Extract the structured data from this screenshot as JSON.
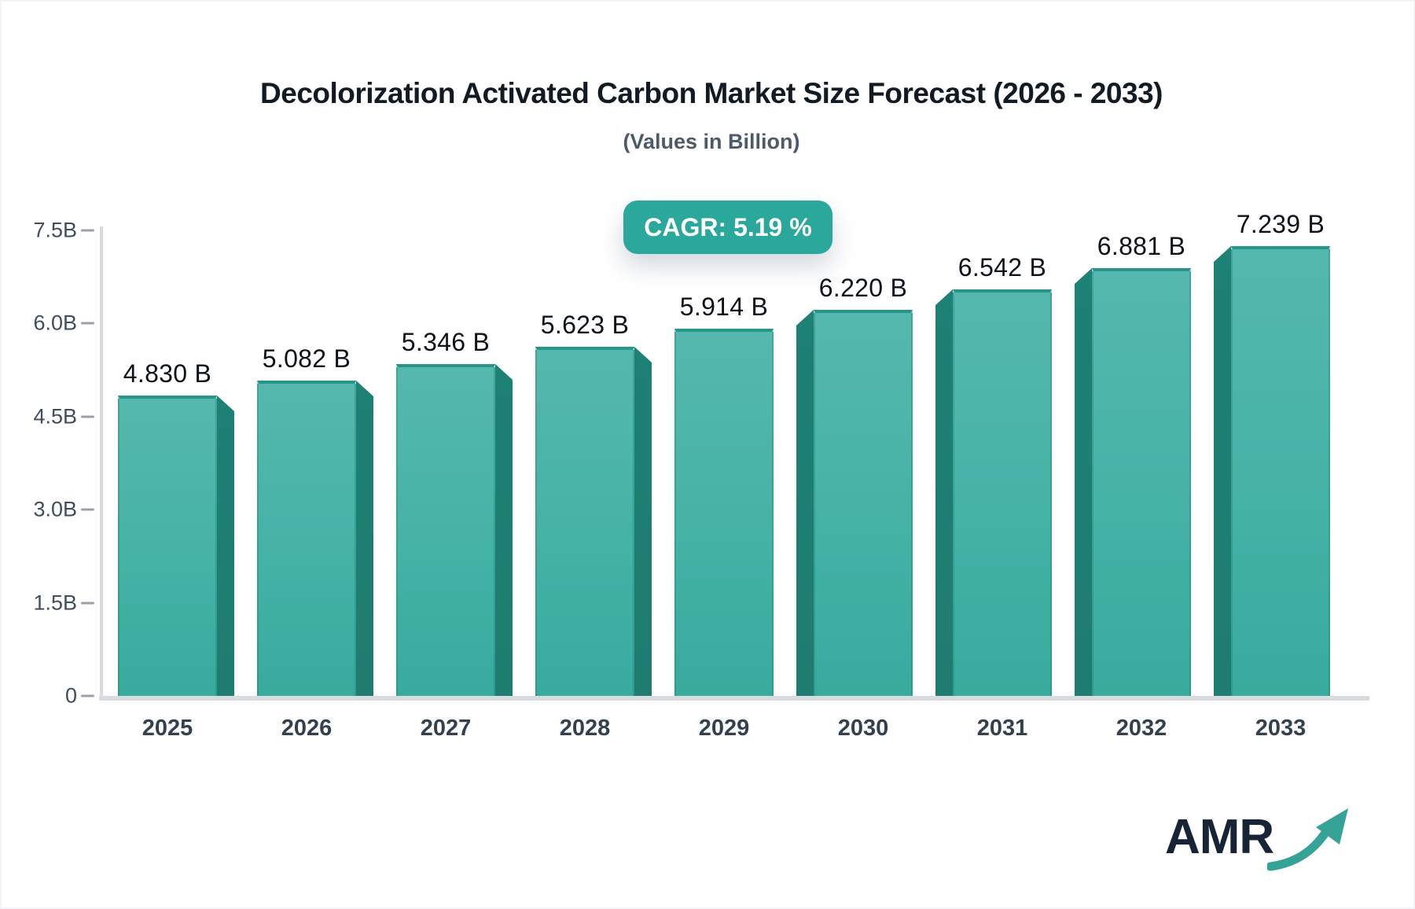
{
  "header": {
    "title": "Decolorization Activated Carbon Market Size Forecast (2026 - 2033)",
    "subtitle": "(Values in Billion)"
  },
  "badge": {
    "text": "CAGR: 5.19 %",
    "bg_color": "#2aa89b",
    "text_color": "#ffffff"
  },
  "chart_data": {
    "type": "bar",
    "title": "Decolorization Activated Carbon Market Size Forecast (2026 - 2033)",
    "subtitle": "(Values in Billion)",
    "xlabel": "",
    "ylabel": "",
    "categories": [
      "2025",
      "2026",
      "2027",
      "2028",
      "2029",
      "2030",
      "2031",
      "2032",
      "2033"
    ],
    "values": [
      4.83,
      5.082,
      5.346,
      5.623,
      5.914,
      6.22,
      6.542,
      6.881,
      7.239
    ],
    "bar_labels": [
      "4.830 B",
      "5.082 B",
      "5.346 B",
      "5.623 B",
      "5.914 B",
      "6.220 B",
      "6.542 B",
      "6.881 B",
      "7.239 B"
    ],
    "unit": "Billion",
    "ylim": [
      0,
      7.5
    ],
    "y_ticks": [
      {
        "label": "0",
        "value": 0
      },
      {
        "label": "1.5B",
        "value": 1.5
      },
      {
        "label": "3.0B",
        "value": 3.0
      },
      {
        "label": "4.5B",
        "value": 4.5
      },
      {
        "label": "6.0B",
        "value": 6.0
      },
      {
        "label": "7.5B",
        "value": 7.5
      }
    ],
    "grid": false,
    "legend": null,
    "style": "3d-perspective-bars",
    "colors": {
      "bar_face_top": "#55b8ae",
      "bar_face_bottom": "#38ab9e",
      "bar_top_edge": "#28958b",
      "bar_depth_side": "#1f7c71",
      "axis_line": "#d9dcdf",
      "tick_text": "#414d5c",
      "category_text": "#33404f",
      "value_text": "#0c1218"
    }
  },
  "logo": {
    "text": "AMR",
    "text_color": "#172435",
    "arrow_icon": "growth-arrow-icon",
    "arrow_color": "#35a396"
  }
}
